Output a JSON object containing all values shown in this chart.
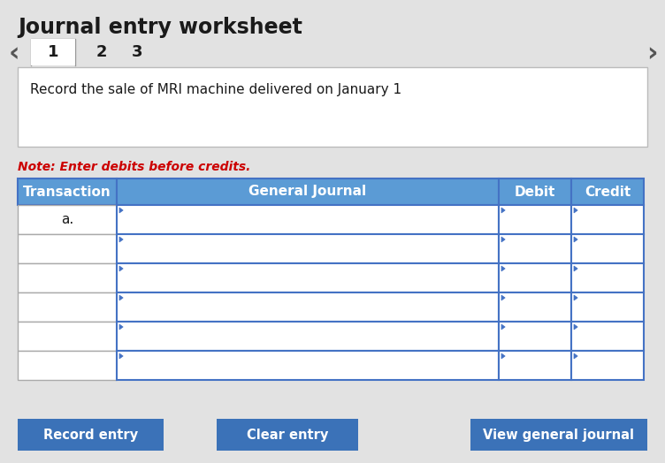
{
  "title": "Journal entry worksheet",
  "bg_color": "#e2e2e2",
  "tab_numbers": [
    "1",
    "2",
    "3"
  ],
  "description": "Record the sale of MRI machine delivered on January 1",
  "note": "Note: Enter debits before credits.",
  "note_color": "#cc0000",
  "table_header_color": "#5b9bd5",
  "table_header_text_color": "#ffffff",
  "table_bg": "#ffffff",
  "table_border_color": "#4472c4",
  "col_headers": [
    "Transaction",
    "General Journal",
    "Debit",
    "Credit"
  ],
  "num_rows": 6,
  "first_row_label": "a.",
  "button_color": "#3b72b8",
  "button_text_color": "#ffffff",
  "buttons": [
    "Record entry",
    "Clear entry",
    "View general journal"
  ],
  "arrow_color": "#4472c4",
  "tab_border_color": "#aaaaaa",
  "desc_border_color": "#bbbbbb"
}
